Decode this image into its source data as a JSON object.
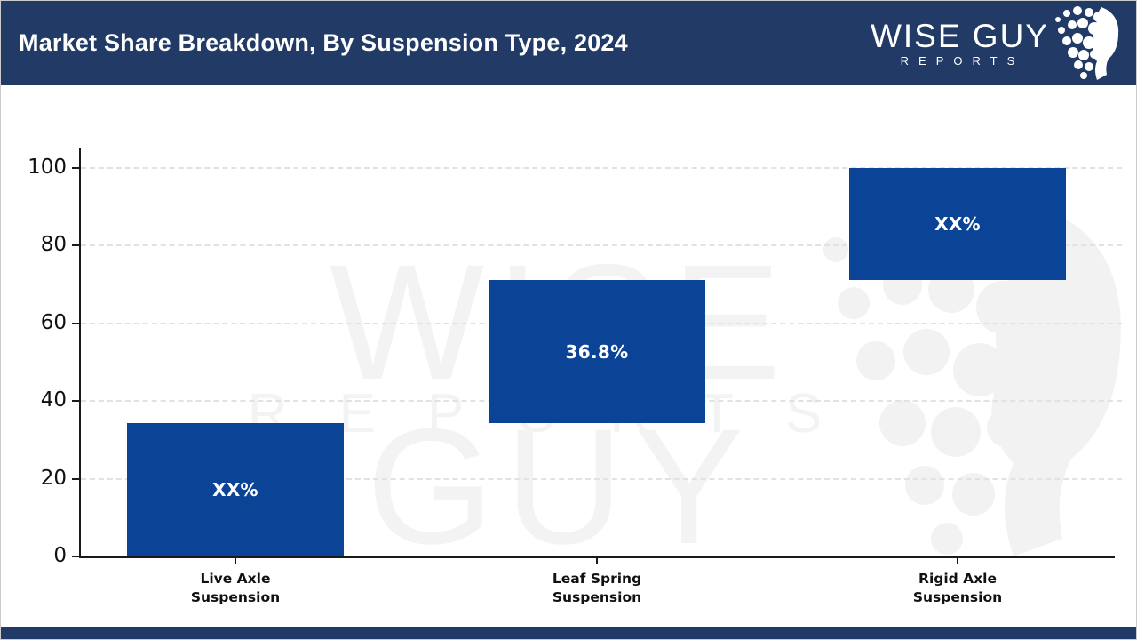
{
  "header": {
    "title": "Market Share Breakdown, By Suspension Type, 2024",
    "background_color": "#213a66",
    "logo": {
      "line1": "WISE GUY",
      "line2": "REPORTS"
    }
  },
  "watermark": {
    "line1": "WISE GUY",
    "line2": "REPORTS"
  },
  "footer": {
    "background_color": "#213a66"
  },
  "chart_data": {
    "type": "bar",
    "subtype": "floating-segment-waterfall",
    "title": "Market Share Breakdown, By Suspension Type, 2024",
    "categories": [
      {
        "line1": "Live Axle",
        "line2": "Suspension"
      },
      {
        "line1": "Leaf Spring",
        "line2": "Suspension"
      },
      {
        "line1": "Rigid Axle",
        "line2": "Suspension"
      }
    ],
    "segments": [
      {
        "category": "Live Axle Suspension",
        "start": 0,
        "end": 34.3,
        "label": "XX%"
      },
      {
        "category": "Leaf Spring Suspension",
        "start": 34.3,
        "end": 71.1,
        "label": "36.8%"
      },
      {
        "category": "Rigid Axle Suspension",
        "start": 71.1,
        "end": 100,
        "label": "XX%"
      }
    ],
    "ylim": [
      0,
      100
    ],
    "yticks": [
      0,
      20,
      40,
      60,
      80,
      100
    ],
    "xlabel": "",
    "ylabel": "",
    "grid": "dashed-horizontal",
    "legend": "none",
    "bar_color": "#0b4397",
    "bar_label_color": "#ffffff",
    "axis_color": "#1a1a1a",
    "gridline_color": "#e2e2e2"
  }
}
